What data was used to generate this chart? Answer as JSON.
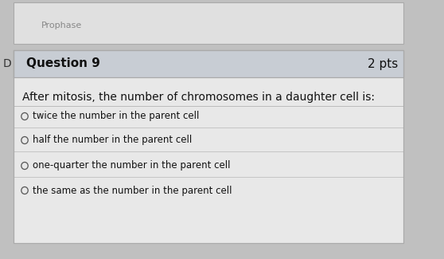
{
  "question_label": "D",
  "question_number": "Question 9",
  "points": "2 pts",
  "question_text": "After mitosis, the number of chromosomes in a daughter cell is:",
  "options": [
    "twice the number in the parent cell",
    "half the number in the parent cell",
    "one-quarter the number in the parent cell",
    "the same as the number in the parent cell"
  ],
  "top_label": "Prophase",
  "header_bg": "#c8cdd4",
  "body_bg": "#e8e8e8",
  "outer_bg": "#c0c0c0",
  "top_box_bg": "#e0e0e0",
  "border_color": "#aaaaaa",
  "text_color": "#111111",
  "label_color": "#333333",
  "pts_color": "#111111",
  "header_fontsize": 11,
  "option_fontsize": 8.5,
  "question_fontsize": 10
}
